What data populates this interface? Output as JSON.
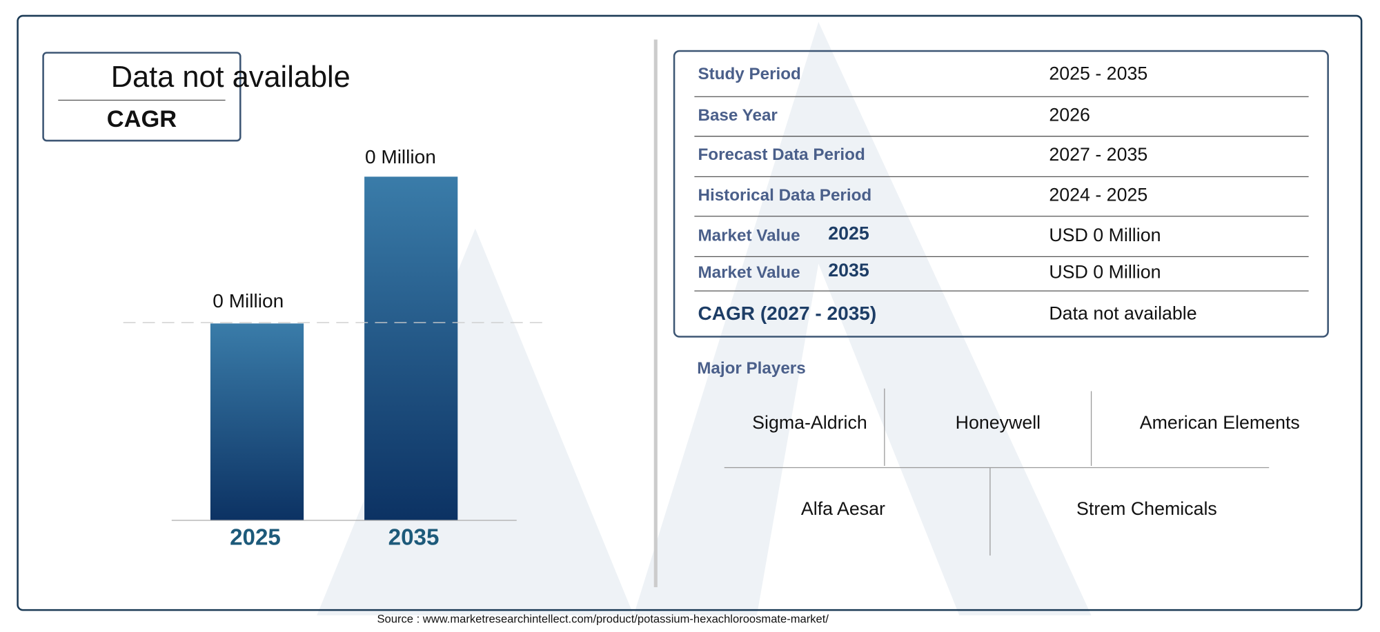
{
  "cagr_box": {
    "value": "Data not available",
    "label": "CAGR"
  },
  "bar_chart": {
    "bars": [
      {
        "value_label": "0 Million",
        "year": "2025"
      },
      {
        "value_label": "0 Million",
        "year": "2035"
      }
    ]
  },
  "summary_table": {
    "rows": [
      {
        "label": "Study Period",
        "value": "2025 - 2035"
      },
      {
        "label": "Base Year",
        "value": "2026"
      },
      {
        "label": "Forecast Data Period",
        "value": "2027 - 2035"
      },
      {
        "label": "Historical Data Period",
        "value": "2024 - 2025"
      },
      {
        "label": "Market Value",
        "year": "2025",
        "value": "USD 0 Million"
      },
      {
        "label": "Market Value",
        "year": "2035",
        "value": "USD 0 Million"
      },
      {
        "label": "CAGR (2027 - 2035)",
        "value": "Data not available"
      }
    ]
  },
  "major_players": {
    "title": "Major Players",
    "players": [
      "Sigma-Aldrich",
      "Honeywell",
      "American Elements",
      "Alfa Aesar",
      "Strem Chemicals"
    ]
  },
  "source": "Source : www.marketresearchintellect.com/product/potassium-hexachloroosmate-market/"
}
